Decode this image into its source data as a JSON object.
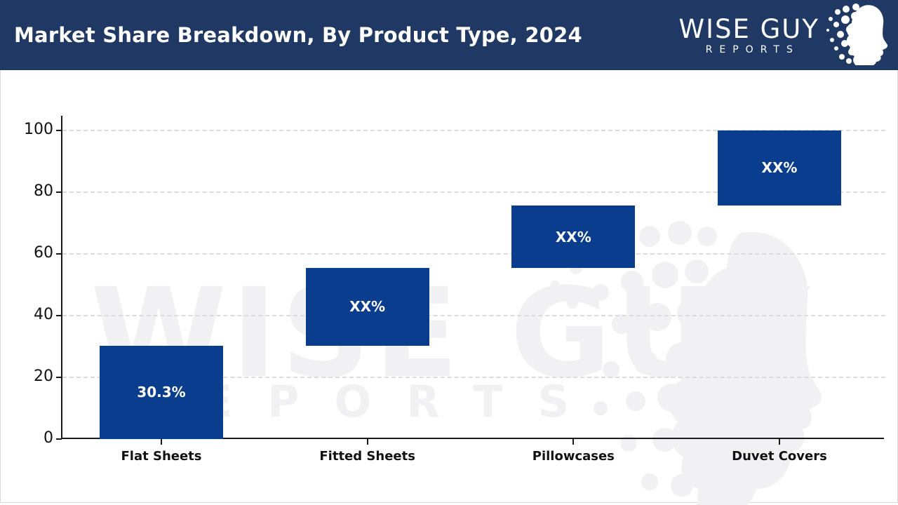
{
  "header": {
    "title": "Market Share Breakdown, By Product Type, 2024",
    "background_color": "#1f3864",
    "logo": {
      "name_top": "WISE GUY",
      "name_bottom": "REPORTS"
    }
  },
  "watermark": {
    "text_top": "WISE GUY",
    "text_bottom": "REPORTS"
  },
  "chart_data": {
    "type": "bar",
    "variant": "waterfall",
    "title": "Market Share Breakdown, By Product Type, 2024",
    "categories": [
      "Flat Sheets",
      "Fitted Sheets",
      "Pillowcases",
      "Duvet Covers"
    ],
    "segments": [
      {
        "category": "Flat Sheets",
        "start": 0,
        "end": 30.3,
        "label": "30.3%"
      },
      {
        "category": "Fitted Sheets",
        "start": 30.3,
        "end": 55.4,
        "label": "XX%"
      },
      {
        "category": "Pillowcases",
        "start": 55.4,
        "end": 75.5,
        "label": "XX%"
      },
      {
        "category": "Duvet Covers",
        "start": 75.5,
        "end": 100,
        "label": "XX%"
      }
    ],
    "xlabel": "",
    "ylabel": "",
    "ylim": [
      0,
      100
    ],
    "yticks": [
      0,
      20,
      40,
      60,
      80,
      100
    ],
    "grid": "horizontal-dashed",
    "legend": "none",
    "bar_color": "#0b3d8f",
    "bar_label_color": "#ffffff",
    "axis_color": "#1a1a1a",
    "gridline_color": "#dcdcdc"
  }
}
